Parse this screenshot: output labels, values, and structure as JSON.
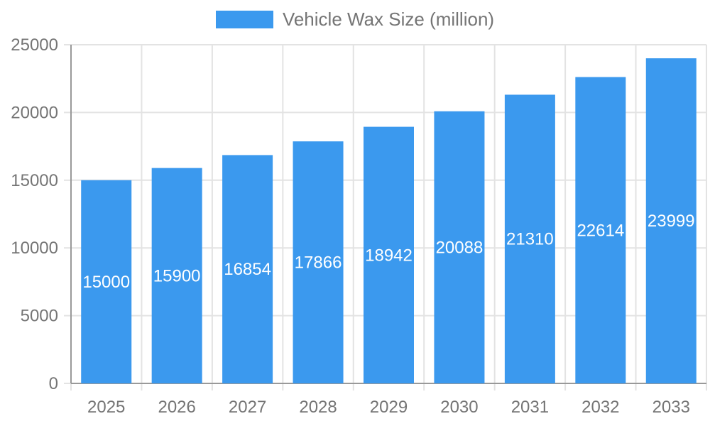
{
  "legend": {
    "label": "Vehicle Wax Size (million)"
  },
  "chart_data": {
    "type": "bar",
    "title": "Vehicle Wax Size (million)",
    "categories": [
      "2025",
      "2026",
      "2027",
      "2028",
      "2029",
      "2030",
      "2031",
      "2032",
      "2033"
    ],
    "values": [
      15000,
      15900,
      16854,
      17866,
      18942,
      20088,
      21310,
      22614,
      23999
    ],
    "xlabel": "",
    "ylabel": "",
    "ylim": [
      0,
      25000
    ],
    "yticks": [
      0,
      5000,
      10000,
      15000,
      20000,
      25000
    ],
    "grid": true,
    "legend_position": "top-center",
    "colors": {
      "bar": "#3b99ee",
      "value_label": "#ffffff",
      "axis": "#999999",
      "grid": "#e3e3e3",
      "tick_label": "#757575"
    }
  }
}
